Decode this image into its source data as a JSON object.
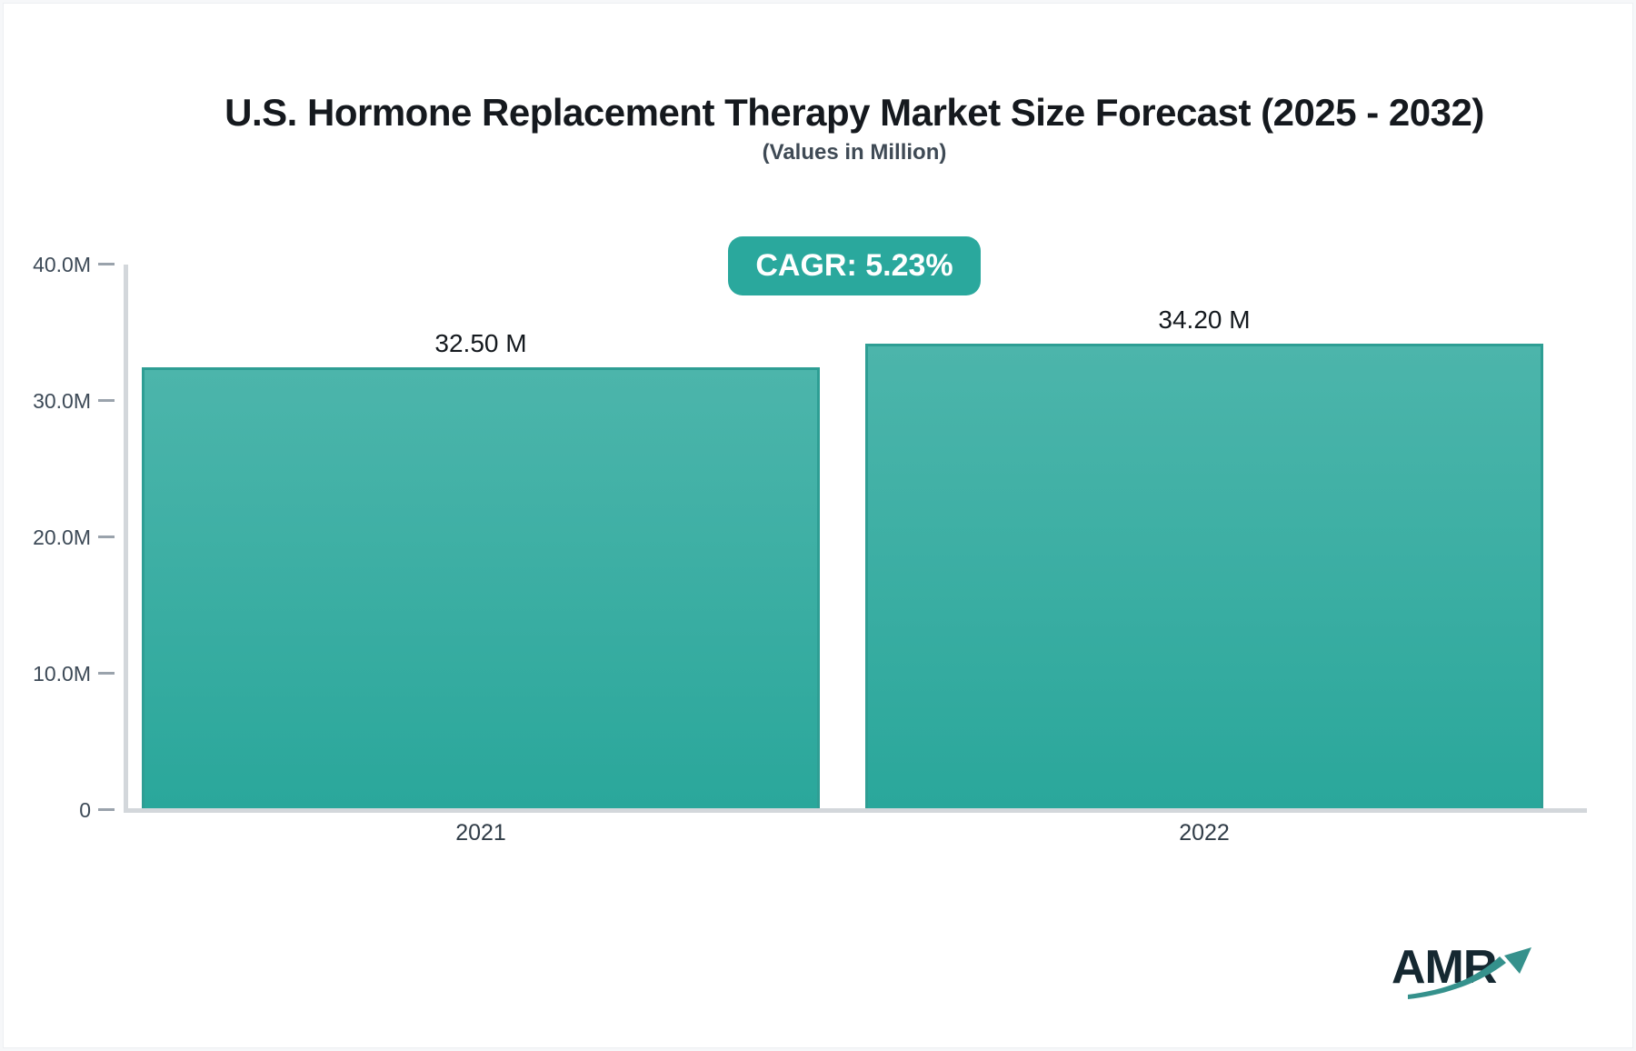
{
  "title": "U.S. Hormone Replacement Therapy Market Size Forecast (2025 - 2032)",
  "subtitle": "(Values in Million)",
  "cagr_badge": {
    "label": "CAGR: 5.23%"
  },
  "chart_data": {
    "type": "bar",
    "categories": [
      "2021",
      "2022"
    ],
    "values": [
      32.5,
      34.2
    ],
    "value_labels": [
      "32.50 M",
      "34.20 M"
    ],
    "title": "U.S. Hormone Replacement Therapy Market Size Forecast (2025 - 2032)",
    "subtitle": "(Values in Million)",
    "unit": "Million",
    "cagr_percent": 5.23,
    "xlabel": "",
    "ylabel": "",
    "ylim": [
      0,
      40
    ],
    "yticks": [
      {
        "value": 40,
        "label": "40.0M"
      },
      {
        "value": 30,
        "label": "30.0M"
      },
      {
        "value": 20,
        "label": "20.0M"
      },
      {
        "value": 10,
        "label": "10.0M"
      },
      {
        "value": 0,
        "label": "0"
      }
    ],
    "grid": false,
    "legend": "none",
    "bar_color": "teal gradient"
  },
  "logo": {
    "text": "AMR"
  },
  "colors": {
    "badge_bg": "#2AA89D",
    "bar_gradient_top": "#4CB5AB",
    "bar_gradient_bottom": "#2AA79B",
    "bar_border": "#2E9E94",
    "axis_line": "#D3D7DB",
    "tick": "#9AA3AC",
    "title_text": "#15191E",
    "subtitle_text": "#3F4A55",
    "axis_label_text": "#3D4A57",
    "value_label_text": "#14191E",
    "category_label_text": "#303C47",
    "logo_text": "#152831",
    "logo_arrow": "#35918C",
    "page_bg": "#F6F7F9",
    "card_bg": "#FFFFFF"
  }
}
